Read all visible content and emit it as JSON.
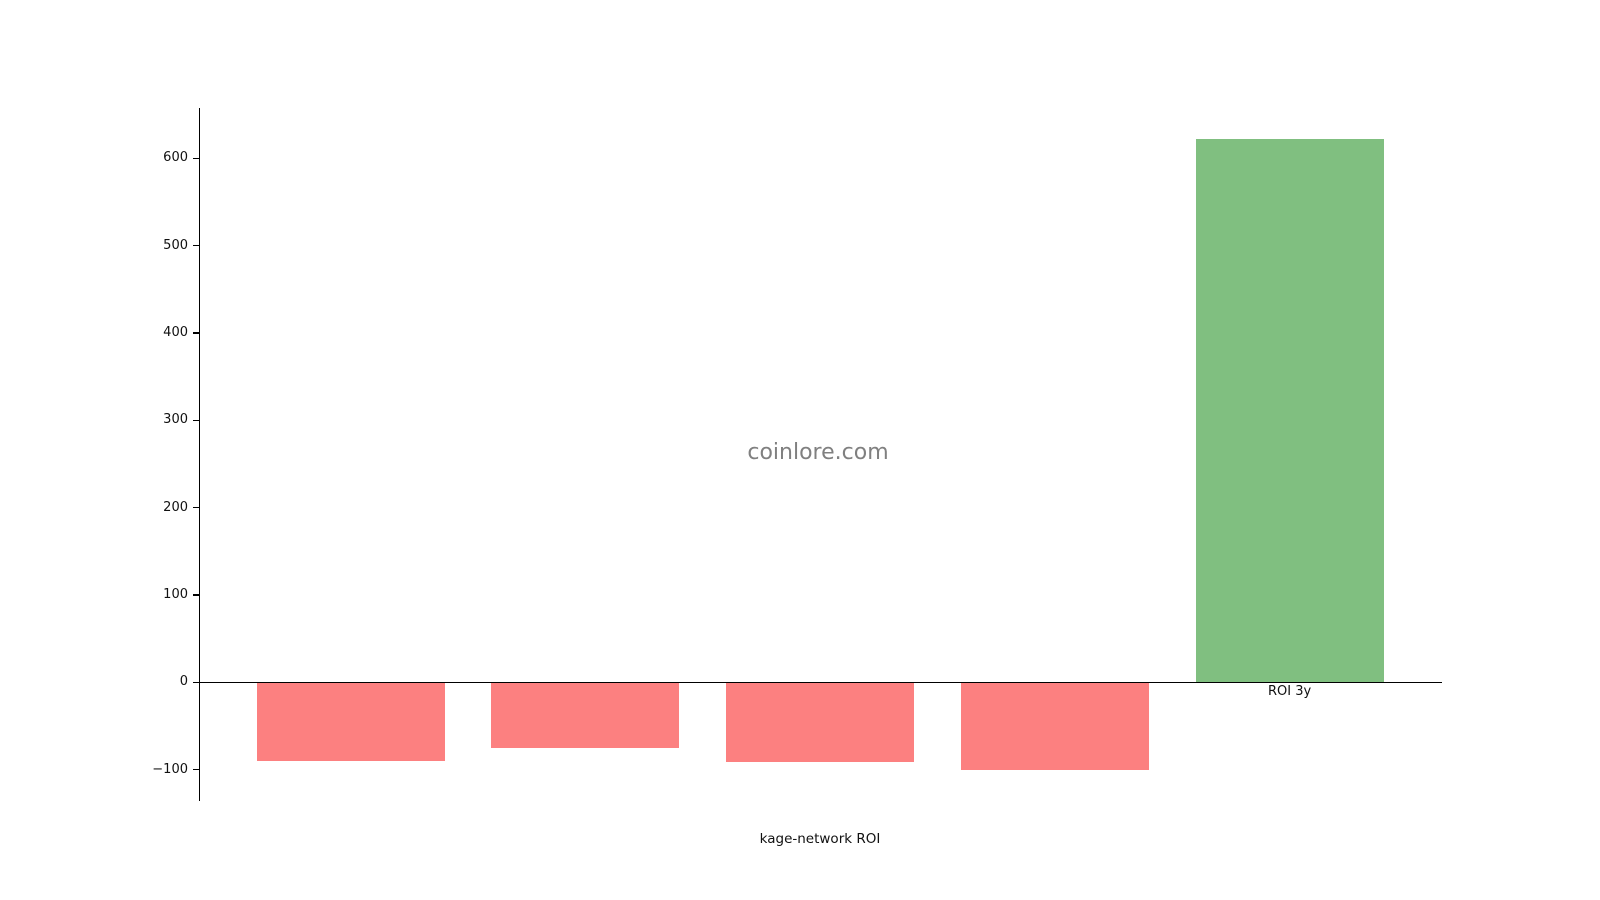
{
  "watermark": "coinlore.com",
  "chart_data": {
    "type": "bar",
    "title": "",
    "xlabel": "kage-network ROI",
    "ylabel": "",
    "categories": [
      "",
      "",
      "",
      "",
      "ROI 3y"
    ],
    "values": [
      -90,
      -75,
      -91,
      -100,
      622
    ],
    "ylim": [
      -135,
      660
    ],
    "yticks": [
      -100,
      0,
      100,
      200,
      300,
      400,
      500,
      600
    ],
    "grid": false,
    "legend_position": "none",
    "colors": {
      "negative_bar": "#fc8080",
      "positive_bar": "#80bf80",
      "axis": "#000000",
      "tick_text": "#111111",
      "watermark_text": "#808080"
    }
  }
}
